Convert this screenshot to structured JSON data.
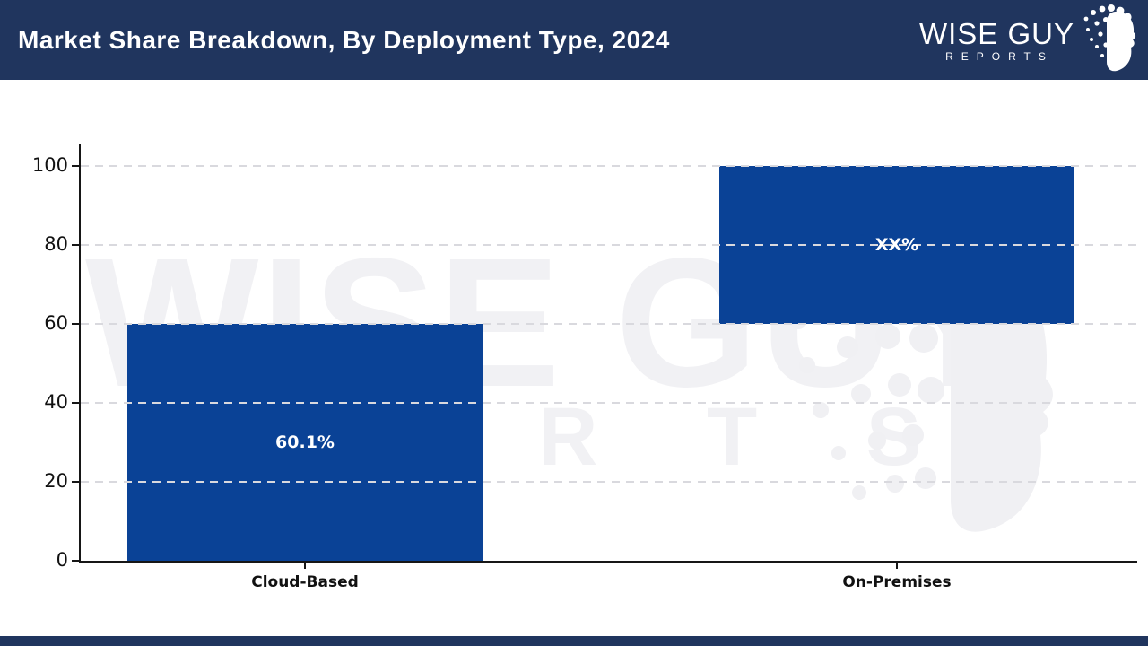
{
  "header": {
    "title": "Market Share Breakdown, By Deployment Type, 2024",
    "logo": {
      "name": "WISE GUY",
      "sub": "REPORTS"
    }
  },
  "watermark": {
    "line1": "WISE GUY",
    "line2": "R T S"
  },
  "colors": {
    "header_bg": "#20355E",
    "bar_color": "#0A4296",
    "grid_color": "#D9D9DE",
    "watermark_color": "#F1F1F4",
    "bar_label_color": "#FFFFFF"
  },
  "chart_data": {
    "type": "bar",
    "title": "Market Share Breakdown, By Deployment Type, 2024",
    "categories": [
      "Cloud-Based",
      "On-Premises"
    ],
    "bars": [
      {
        "category": "Cloud-Based",
        "start": 0,
        "end": 60.1,
        "label": "60.1%"
      },
      {
        "category": "On-Premises",
        "start": 60,
        "end": 100,
        "label": "XX%"
      }
    ],
    "values": [
      60.1,
      40
    ],
    "unit": "%",
    "yticks": [
      0,
      20,
      40,
      60,
      80,
      100
    ],
    "ylim": [
      0,
      106
    ],
    "xlabel": "",
    "ylabel": "",
    "legend": "none",
    "grid": "horizontal-dashed"
  }
}
